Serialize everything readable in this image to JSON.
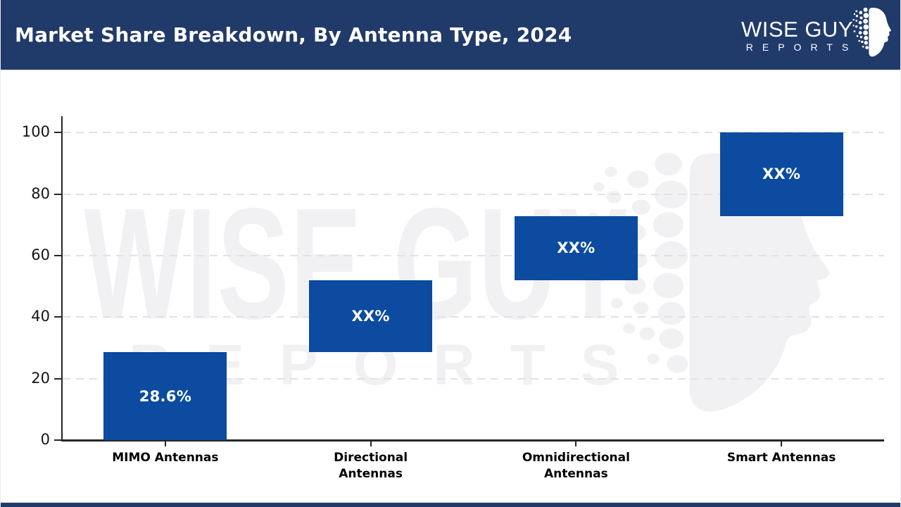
{
  "header": {
    "title": "Market Share Breakdown, By Antenna Type, 2024",
    "logo": {
      "name": "WISE GUY",
      "subtitle": "REPORTS"
    }
  },
  "watermark": {
    "name": "WISE GUY",
    "subtitle": "REPORTS"
  },
  "colors": {
    "header_bg": "#203A69",
    "footer_bg": "#203A69",
    "bar": "#0C4B9F",
    "bar_label": "#FFFFFF",
    "title_text": "#FFFFFF",
    "grid_line": "#E2E2E2",
    "axis_line": "#262626",
    "watermark": "#F1F1F4"
  },
  "chart_data": {
    "type": "bar",
    "subtype": "waterfall",
    "title": "Market Share Breakdown, By Antenna Type, 2024",
    "categories": [
      "MIMO Antennas",
      "Directional\nAntennas",
      "Omnidirectional\nAntennas",
      "Smart Antennas"
    ],
    "segments": [
      {
        "category": "MIMO Antennas",
        "start": 0,
        "end": 28.6,
        "label": "28.6%"
      },
      {
        "category": "Directional Antennas",
        "start": 28.6,
        "end": 51.9,
        "label": "XX%"
      },
      {
        "category": "Omnidirectional Antennas",
        "start": 51.9,
        "end": 72.9,
        "label": "XX%"
      },
      {
        "category": "Smart Antennas",
        "start": 72.9,
        "end": 100,
        "label": "XX%"
      }
    ],
    "y_ticks": [
      0,
      20,
      40,
      60,
      80,
      100
    ],
    "ylim": [
      0,
      105.3
    ],
    "xlabel": "",
    "ylabel": "",
    "grid": "horizontal-dashed",
    "legend": "none"
  }
}
